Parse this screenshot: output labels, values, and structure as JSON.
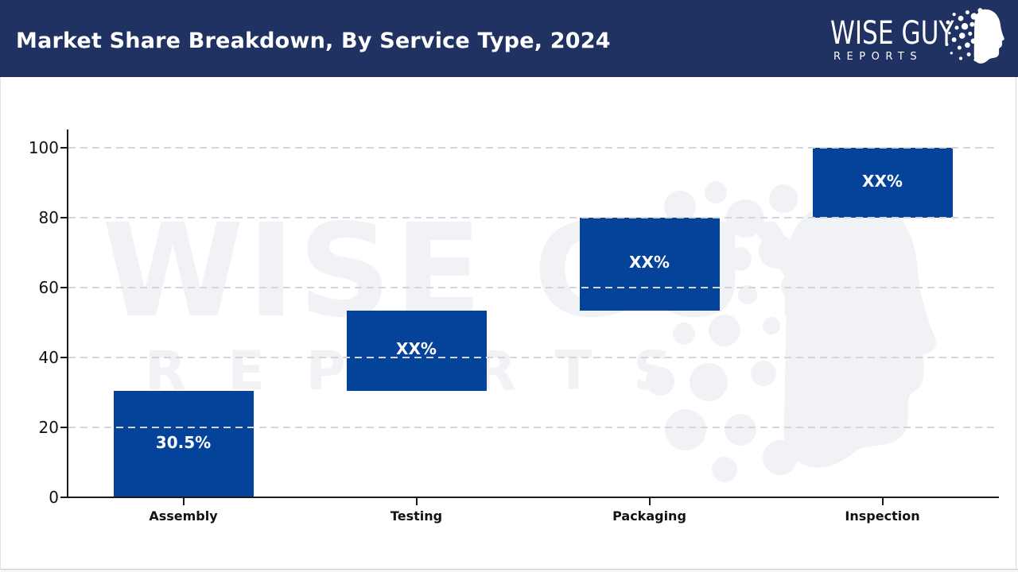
{
  "header": {
    "title": "Market Share Breakdown, By Service Type, 2024",
    "logo": {
      "brand_top": "WISE GUY",
      "brand_bottom": "REPORTS",
      "icon": "dotted-head-profile-icon"
    }
  },
  "watermark": {
    "brand_top": "WISE GUY",
    "brand_bottom": "REPORTS",
    "icon": "dotted-head-profile-watermark"
  },
  "chart_data": {
    "type": "bar",
    "subtype": "floating-waterfall",
    "title": "Market Share Breakdown, By Service Type, 2024",
    "categories": [
      "Assembly",
      "Testing",
      "Packaging",
      "Inspection"
    ],
    "segments": [
      {
        "category": "Assembly",
        "start": 0,
        "end": 30.5,
        "label": "30.5%"
      },
      {
        "category": "Testing",
        "start": 30.5,
        "end": 53.5,
        "label": "XX%"
      },
      {
        "category": "Packaging",
        "start": 53.5,
        "end": 80,
        "label": "XX%"
      },
      {
        "category": "Inspection",
        "start": 80,
        "end": 100,
        "label": "XX%"
      }
    ],
    "xlabel": "",
    "ylabel": "",
    "ylim": [
      0,
      105
    ],
    "yticks": [
      0,
      20,
      40,
      60,
      80,
      100
    ],
    "grid": "horizontal-dashed-over-bars",
    "legend": "none",
    "bar_color": "#05439b",
    "bar_label_color": "#ffffff"
  },
  "colors": {
    "header_bg": "#203262",
    "header_text": "#ffffff",
    "bar": "#05439b",
    "gridline": "#d6d6d6",
    "axis": "#1a1a1a",
    "tick_text": "#111111",
    "watermark": "#f1f2f5",
    "background": "#ffffff"
  }
}
